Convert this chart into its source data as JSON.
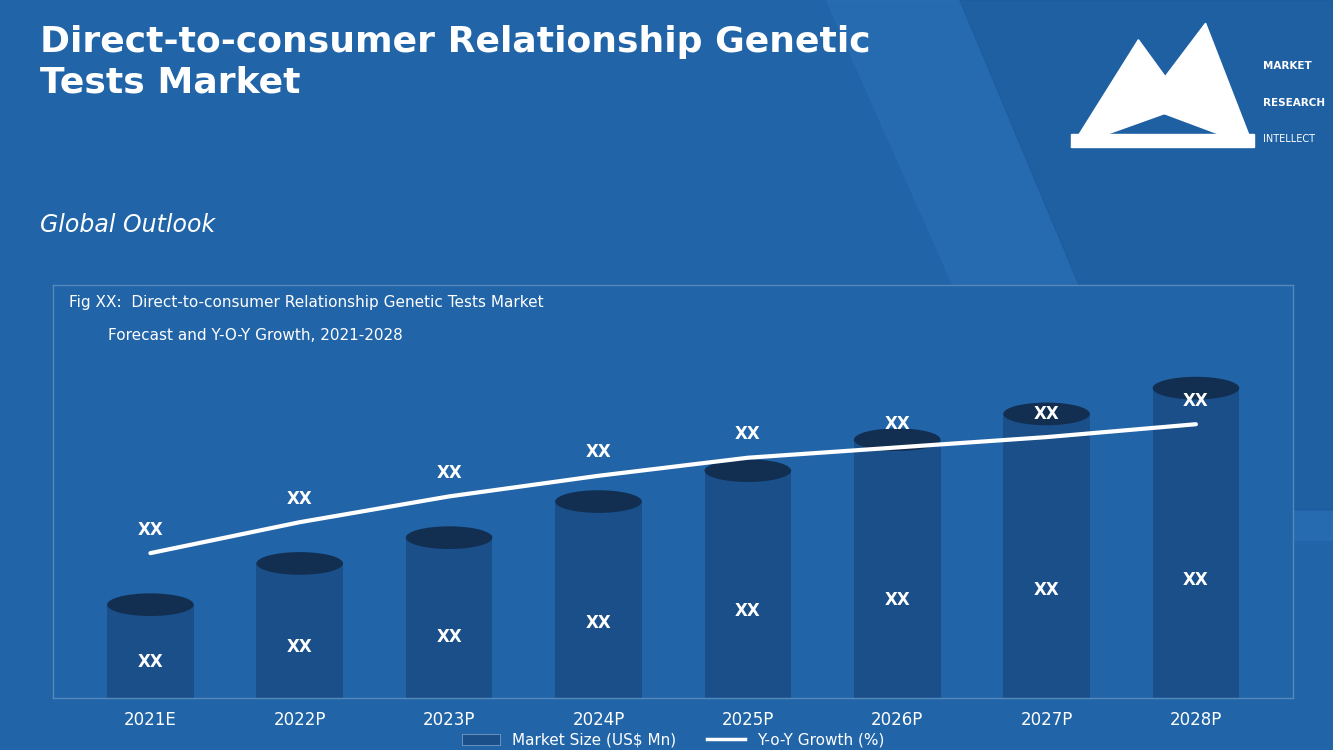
{
  "title": "Direct-to-consumer Relationship Genetic\nTests Market",
  "subtitle": "Global Outlook",
  "fig_label_line1": "Fig XX:  Direct-to-consumer Relationship Genetic Tests Market",
  "fig_label_line2": "        Forecast and Y-O-Y Growth, 2021-2028",
  "categories": [
    "2021E",
    "2022P",
    "2023P",
    "2024P",
    "2025P",
    "2026P",
    "2027P",
    "2028P"
  ],
  "bar_values": [
    1.8,
    2.6,
    3.1,
    3.8,
    4.4,
    5.0,
    5.5,
    6.0
  ],
  "line_values": [
    2.8,
    3.4,
    3.9,
    4.3,
    4.65,
    4.85,
    5.05,
    5.3
  ],
  "bar_label": "XX",
  "line_label": "XX",
  "legend_bar": "Market Size (US$ Mn)",
  "legend_line": "Y-o-Y Growth (%)",
  "bg_color": "#2165a8",
  "bar_color": "#1a4f8a",
  "bar_color_darker": "#163f6e",
  "ellipse_color": "#122f52",
  "line_color": "#ffffff",
  "text_color": "#ffffff",
  "title_fontsize": 26,
  "subtitle_fontsize": 17,
  "fig_label_fontsize": 11,
  "annotation_fontsize": 12,
  "axis_fontsize": 12,
  "legend_fontsize": 11,
  "ylim": [
    0,
    8.0
  ],
  "bar_width": 0.58
}
